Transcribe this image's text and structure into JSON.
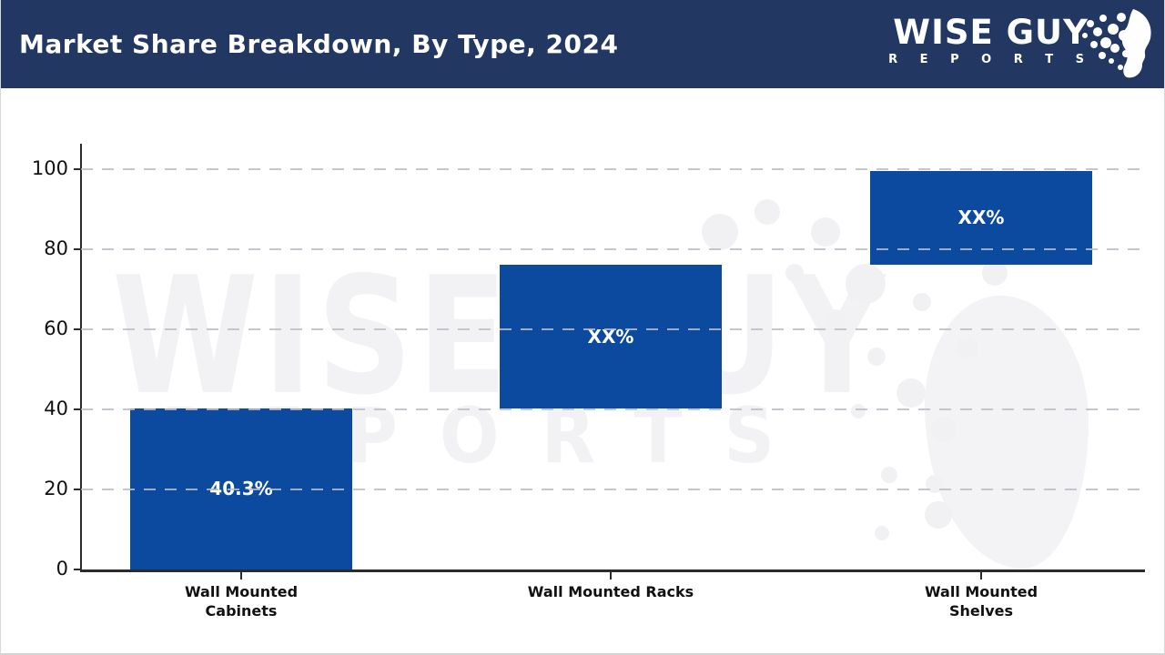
{
  "header": {
    "title": "Market Share Breakdown, By Type, 2024",
    "logo": {
      "line1": "WISE GUY",
      "line2": "R E P O R T S"
    }
  },
  "watermark": {
    "line1": "WISE GUY",
    "line2": "REPORTS"
  },
  "chart_data": {
    "type": "bar",
    "subtype": "waterfall-floating-bars",
    "title": "Market Share Breakdown, By Type, 2024",
    "categories": [
      "Wall Mounted\nCabinets",
      "Wall Mounted Racks",
      "Wall Mounted\nShelves"
    ],
    "series": [
      {
        "name": "Market Share (%)",
        "segments": [
          {
            "category": "Wall Mounted Cabinets",
            "start": 0,
            "end": 40.3,
            "label": "40.3%"
          },
          {
            "category": "Wall Mounted Racks",
            "start": 40.3,
            "end": 76.1,
            "label": "XX%"
          },
          {
            "category": "Wall Mounted Shelves",
            "start": 76.1,
            "end": 99.6,
            "label": "XX%"
          }
        ]
      }
    ],
    "xlabel": "",
    "ylabel": "",
    "yticks": [
      0,
      20,
      40,
      60,
      80,
      100
    ],
    "ylim": [
      0,
      106
    ],
    "grid": "horizontal-dashed",
    "legend": "none",
    "bar_color": "#0b4a9e",
    "bar_label_color": "#ffffff",
    "axis_color": "#2b2b2b",
    "header_color": "#223863"
  }
}
